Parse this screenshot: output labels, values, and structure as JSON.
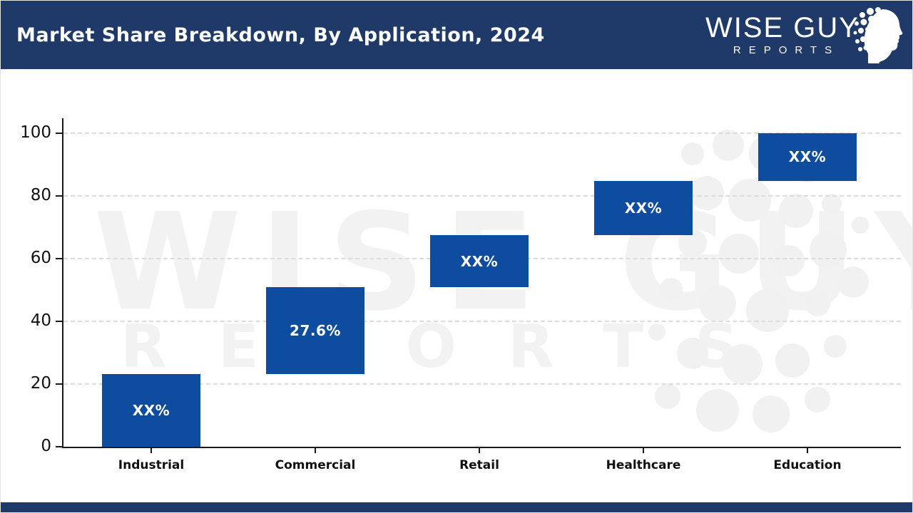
{
  "header": {
    "title": "Market Share Breakdown, By Application, 2024",
    "logo": {
      "line1": "WISE GUY",
      "line2": "REPORTS"
    }
  },
  "watermark": {
    "line1": "WISE GUY",
    "line2": "REPORTS"
  },
  "colors": {
    "header_bg": "#1f3a68",
    "footer_bg": "#1f3a68",
    "bar": "#0d4c9e",
    "bar_label": "#ffffff",
    "grid": "#dcdcdc",
    "axis": "#1a1a1a",
    "watermark": "#f2f2f2"
  },
  "chart_data": {
    "type": "bar",
    "subtype": "waterfall",
    "title": "Market Share Breakdown, By Application, 2024",
    "categories": [
      "Industrial",
      "Commercial",
      "Retail",
      "Healthcare",
      "Education"
    ],
    "segments": [
      {
        "category": "Industrial",
        "start": 0,
        "end": 23.2,
        "label": "XX%"
      },
      {
        "category": "Commercial",
        "start": 23.2,
        "end": 50.8,
        "label": "27.6%"
      },
      {
        "category": "Retail",
        "start": 50.8,
        "end": 67.4,
        "label": "XX%"
      },
      {
        "category": "Healthcare",
        "start": 67.4,
        "end": 84.8,
        "label": "XX%"
      },
      {
        "category": "Education",
        "start": 84.8,
        "end": 100,
        "label": "XX%"
      }
    ],
    "xlabel": "",
    "ylabel": "",
    "ylim": [
      0,
      100
    ],
    "yticks": [
      0,
      20,
      40,
      60,
      80,
      100
    ],
    "grid": true,
    "legend": false
  }
}
